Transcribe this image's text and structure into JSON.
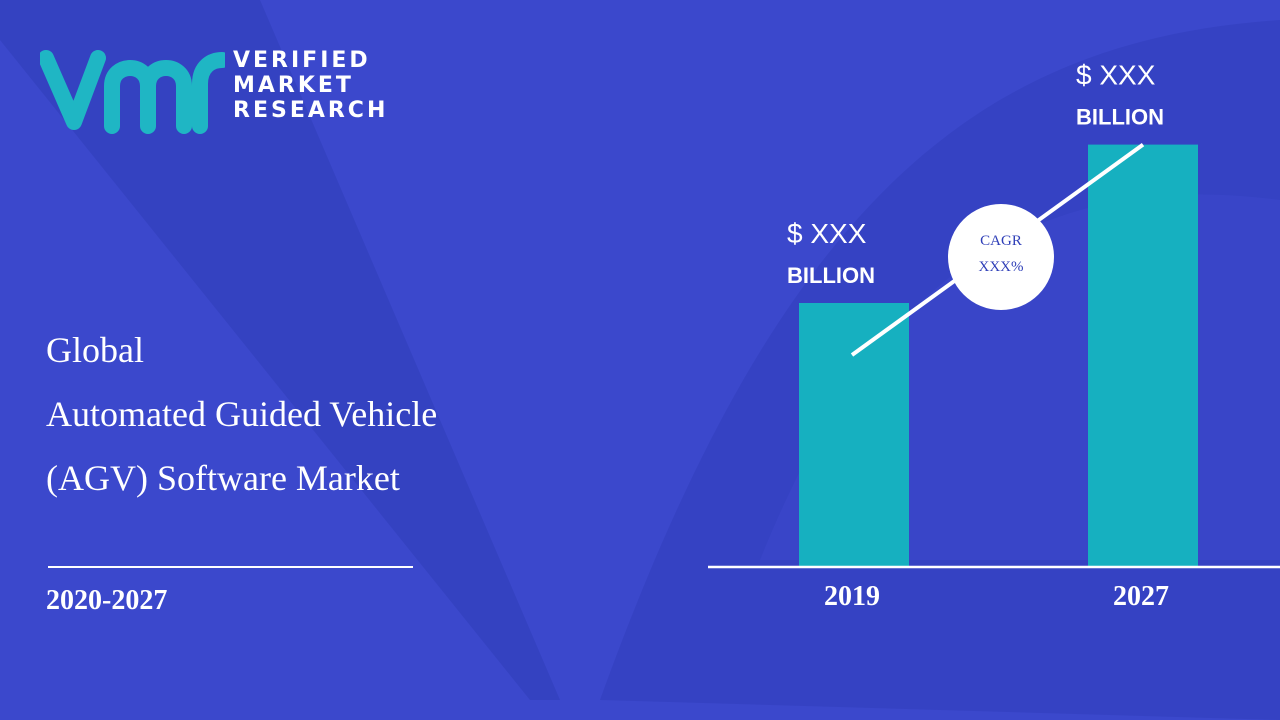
{
  "brand": {
    "line1": "VERIFIED",
    "line2": "MARKET",
    "line3": "RESEARCH"
  },
  "title": {
    "line1": "Global",
    "line2": "Automated Guided Vehicle",
    "line3": "(AGV) Software Market"
  },
  "period": "2020-2027",
  "colors": {
    "background": "#3b48cc",
    "bar": "#16b0c0",
    "logo_teal": "#1fb6c4"
  },
  "chart_data": {
    "type": "bar",
    "categories": [
      "2019",
      "2027"
    ],
    "values": [
      0.55,
      0.88
    ],
    "value_labels": [
      {
        "amount": "$ XXX",
        "unit": "BILLION"
      },
      {
        "amount": "$ XXX",
        "unit": "BILLION"
      }
    ],
    "cagr": {
      "label": "CAGR",
      "value": "XXX%"
    },
    "ylim": [
      0,
      1
    ],
    "grid": false
  }
}
